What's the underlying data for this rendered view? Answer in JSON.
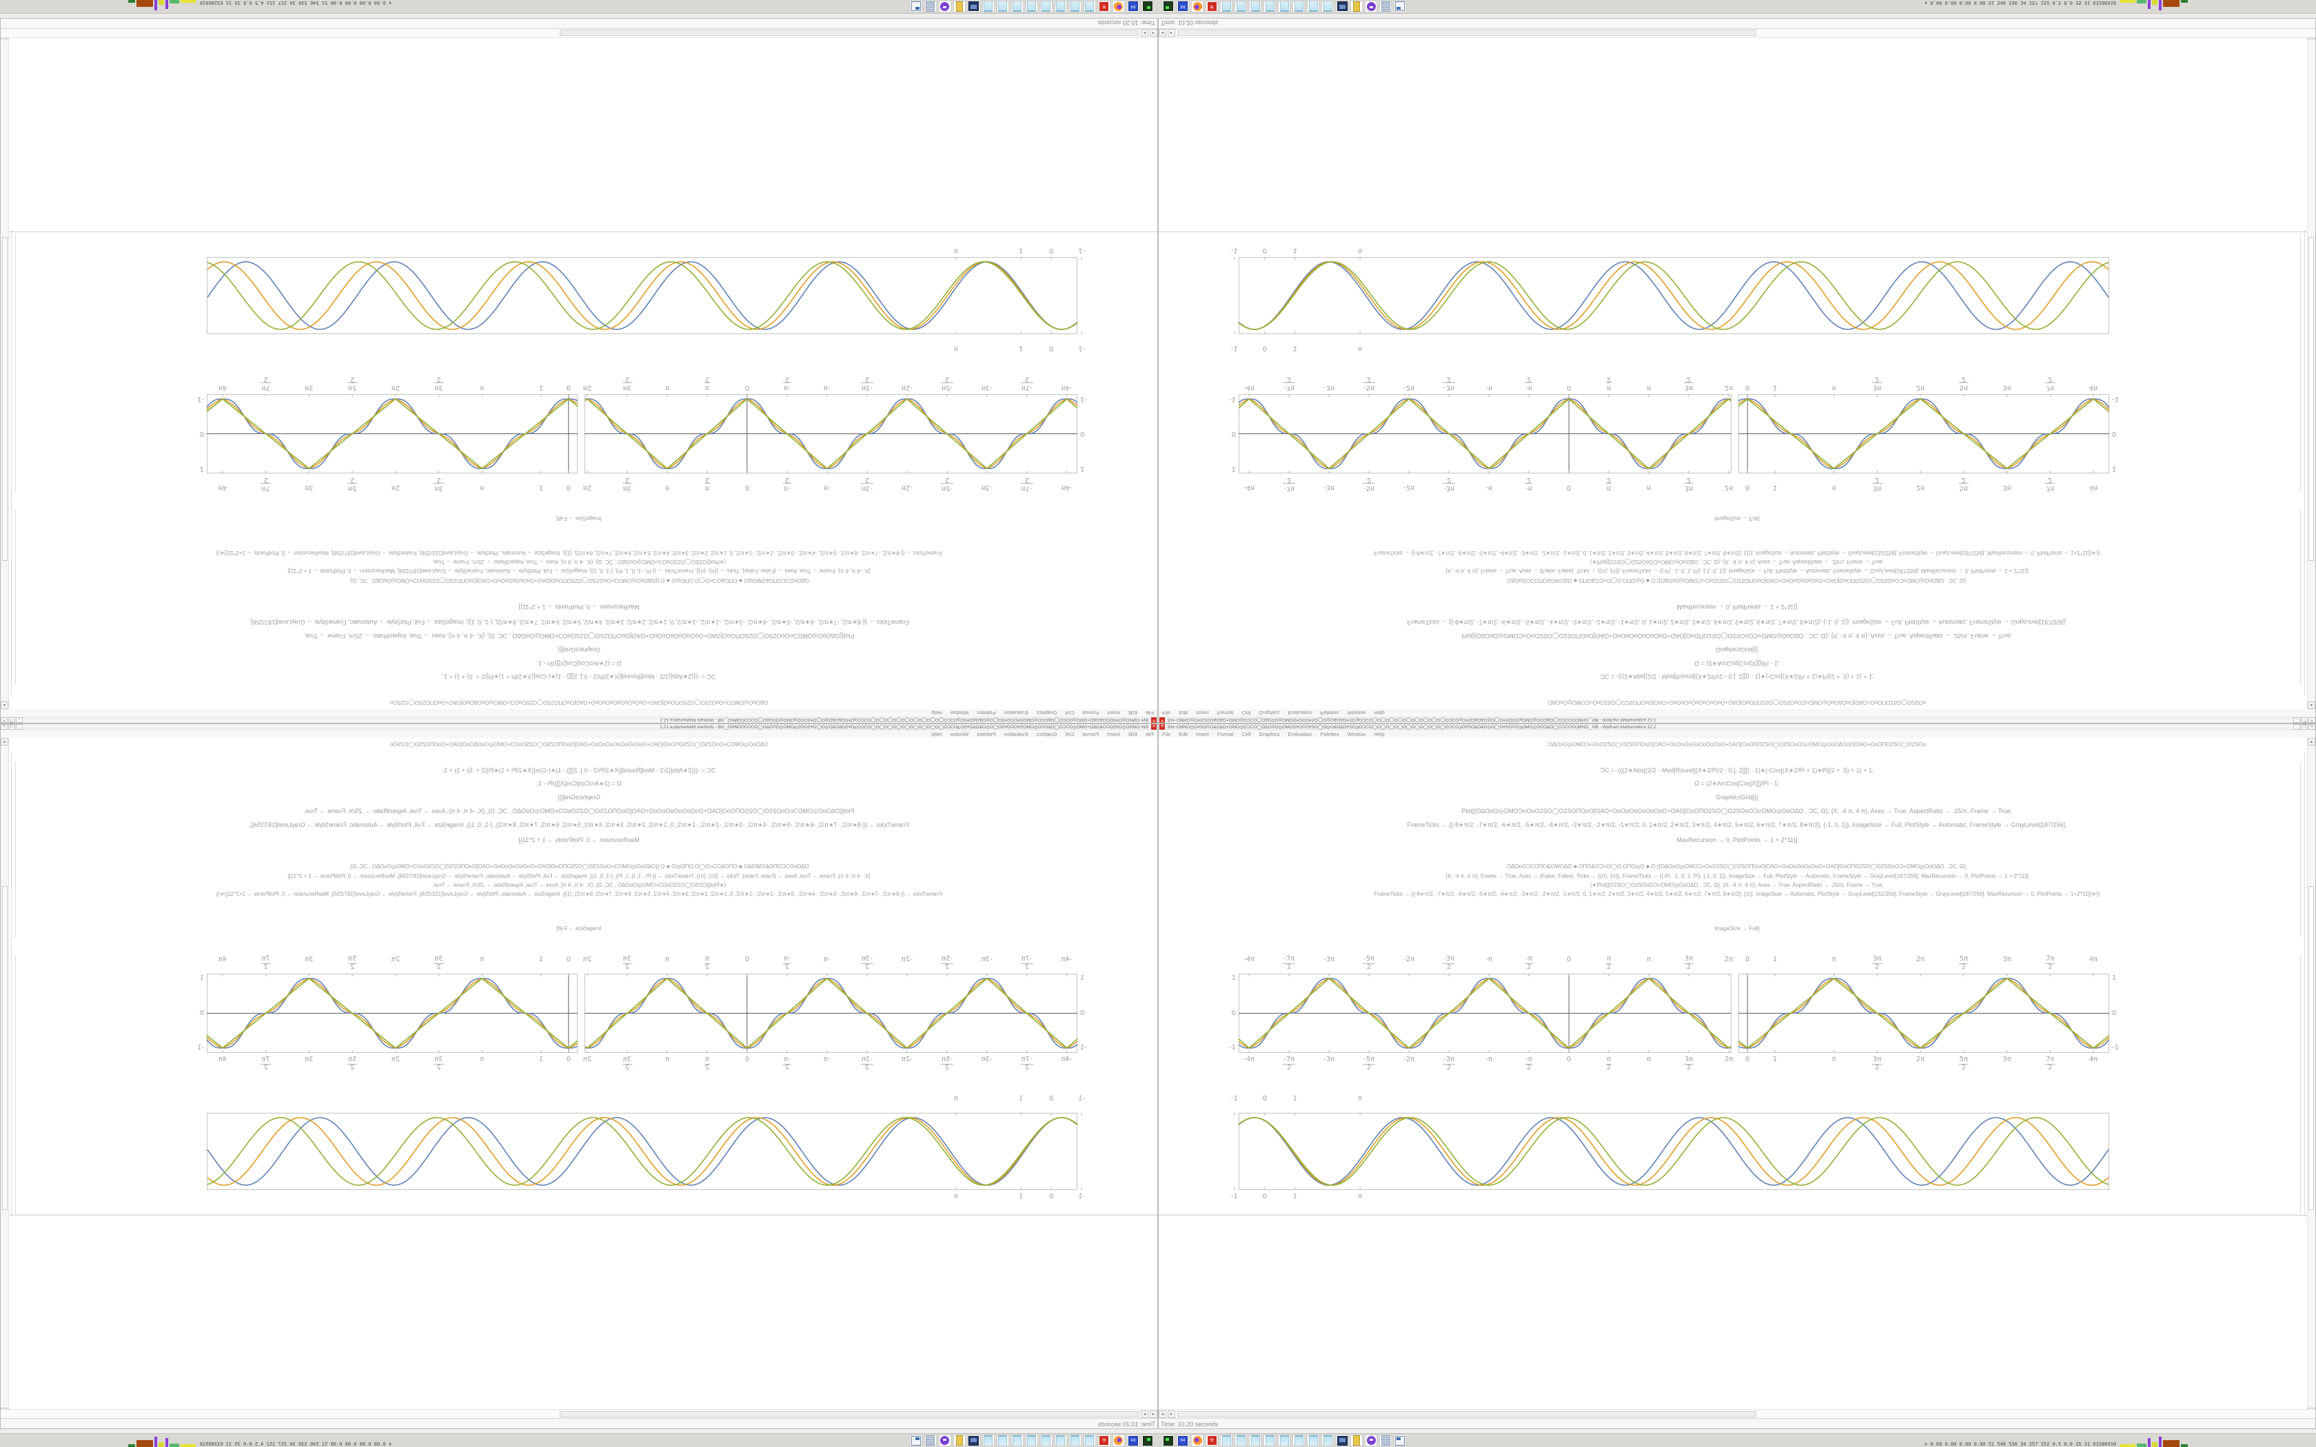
{
  "window": {
    "title": "ΒИ⌐ΟͶΝΟ◎Ο≡SΟ©Ο&ΟΔΟ+ΟΜΟ◎ΟϽϹΟ◯ΟΔΟ©Ο◎ΟΜΟS≡Ο©Ο≡SΟ◯Ο◎Ο&ΟΔΟ≡SΟ℈ΟϽϹΟ◯Ο◯Ο◯Ο◯Ο◯Ο◯Ο◯Ο◯Ο◯ΟϽϹΟ℈Ο≡SΟΔΟ&Ο◎Ο◯Ο≡SΟ©Ο℈ΟΜΟ◎Ο©ΟΔΟ◯ΟϽϹΟ©ΟͶΝΟ_.NB - Wolfram Mathematica 12.2",
    "app_icon": "✳",
    "controls": {
      "minimize": "_",
      "restore": "❐",
      "close": "✕"
    }
  },
  "menu": {
    "items": [
      "File",
      "Edit",
      "Insert",
      "Format",
      "Cell",
      "Graphics",
      "Evaluation",
      "Palettes",
      "Window",
      "Help"
    ]
  },
  "notebook": {
    "code_block0": "ΟΔΟοΟ◎ΟΜΟϽ℮ΟοΟ2SΟ◯Ο2SΟΠΟοΟ[ΟΑΟ+ΟοΟοΟοΟοΟοΟοΟοΟ+ΟΑΟ[ΟοΟΠΟ2SΟ◯Ο2SΟοΟϽ℮ΟΜΟ◎ΟοΟΔΟοΟ[ΟΑΟ+ΟοΟΠΟ2SΟ◯Ο2SΟο",
    "code_block1": [
      "ϽϹ = -(((2∗Abs[(2/2 - Mod[Round[(X∗2/Pi/2 - 0.], 2]]]) - 1)∗(-Cos[(X∗2/Pi + 1)∗Pi]/2 + .5) + 1) + 1;",
      "Ω = (2∗ArcCos[Cos[X]])/Pi - 1;",
      "GraphicsGrid[{{",
      "Plot[{ΟΔΟοΟ◎ΟΜΟϽ℮ΟοΟ2SΟ◯Ο2SΟΠΟοΟ[ΟΑΟ+ΟοΟοΟοΟοΟοΟοΟ+ΟΑΟ[ΟοΟΠΟ2SΟ◯Ο2SΟοΟϽ℮ΟΜΟ◎ΟοΟΔΟ , ϽϹ, Ω}, {X, -4 π, 4 π}, Axes → True, AspectRatio → .25/π, Frame → True,",
      "FrameTicks → {{-8∗π/2, -7∗π/2, -6∗π/2, -5∗π/2, -4∗π/2, -3∗π/2, -2∗π/2, -1∗π/2, 0, 1∗π/2, 2∗π/2, 3∗π/2, 4∗π/2, 5∗π/2, 6∗π/2, 7∗π/2, 8∗π/2}, {-1, 0, 1}}, ImageSize → Full, PlotStyle → Automatic, FrameStyle → GrayLevel[187/256],",
      "MaxRecursion → 0, PlotPoints → 1 + 2^11}]"
    ],
    "code_block2": [
      "ΟΔΟοΟϽϹΟΠΟ&ΟWΟΔΟ ♣ ΟΠΟ&ΟϽ℮Ο◯Ο,ΟΠΟ◎Ο ♣ Ο   [{ΟΔΟοΟ◎ΟΜΟϽ℮ΟοΟ2SΟ◯Ο2SΟΠΟοΟ[ΟΑΟ+ΟοΟοΟοΟοΟοΟ+ΟΑΟ[ΟοΟΠΟ2SΟ◯Ο2SΟοΟϽ℮ΟΜΟ◎ΟοΟΔΟ  , ϽϹ, Ω},",
      "{X, -4 π, 4 π}, Frame → True, Axes → {False, False}, Ticks → {{π}, {π}}, FrameTicks → {{-Pi, -1, 0, 1, Pi}, {-1, 0, 1}}, ImageSize → Full, PlotStyle → Automatic, FrameStyle → GrayLevel[187/256], MaxRecursion → 0, PlotPoints → 1 + 2^11]}",
      "(∗Plot[{Ο2SΟ◯Ο2SΟοΟϽ℮ΟΜΟ◎ΟοΟΔΟ  , ϽϹ, Ω}, {X, -4 π, 4 π}, Axes → True, AspectRatio → .25/π, Frame → True,",
      "FrameTicks → {{-8∗π/2, -7∗π/2, -6∗π/2, -5∗π/2, -4∗π/2, -3∗π/2, -2∗π/2, -1∗π/2, 0, 1∗π/2, 2∗π/2, 3∗π/2, 4∗π/2, 5∗π/2, 6∗π/2, 7∗π/2, 8∗π/2}, {1}}, ImageSize → Automatic, PlotStyle → GrayLevel[152/256], FrameStyle → GrayLevel[187/256], MaxRecursion → 0, PlotPoints → 1+2^11]}∗)}",
      "ImageSize → Full]"
    ]
  },
  "status": {
    "time_label": "Time: 10.20 seconds"
  },
  "tray": {
    "monitor_text": "⇈ 0.00 0.00 0.00 0.00  51  546  536  34  257  152  4.5  0.0  35  31  63286910",
    "spark": [
      {
        "color": "#e6e332",
        "w": 22,
        "h": 4
      },
      {
        "color": "#59b96b",
        "w": 14,
        "h": 5
      },
      {
        "color": "#8a3fd9",
        "w": 4,
        "h": 13
      },
      {
        "color": "#d9d932",
        "w": 8,
        "h": 7
      },
      {
        "color": "#8a3fd9",
        "w": 4,
        "h": 15
      },
      {
        "color": "#a6490f",
        "w": 24,
        "h": 10
      },
      {
        "color": "#2e7d32",
        "w": 10,
        "h": 4
      }
    ]
  },
  "taskbar": {
    "icons": [
      "drive-green",
      "floppy-64",
      "firefox",
      "gear-red",
      "notepad",
      "notepad",
      "notepad",
      "notepad",
      "notepad",
      "notepad",
      "notepad",
      "notepad",
      "monitor",
      "folder",
      "chat-purple",
      "scroll",
      "window"
    ],
    "floppy_label": "64"
  },
  "chart_data": [
    {
      "id": "row1-left",
      "type": "line",
      "title": "",
      "xlabel": "",
      "ylabel": "",
      "x_range": [
        -12.98,
        6.39
      ],
      "y_range": [
        -1.05,
        1.05
      ],
      "x_ticks": {
        "values": [
          -12.566,
          -10.996,
          -9.425,
          -7.854,
          -6.283,
          -4.712,
          -3.1416,
          -1.5708,
          0,
          1.5708,
          3.1416,
          4.712,
          6.283
        ],
        "labels": [
          "-4π",
          "-7π/2",
          "-3π",
          "-5π/2",
          "-2π",
          "-3π/2",
          "-π",
          "-π/2",
          "0",
          "π/2",
          "π",
          "3π/2",
          "2π"
        ]
      },
      "y_ticks": {
        "values": [
          1,
          0,
          -1
        ],
        "labels": [
          "1",
          "0",
          "-1"
        ],
        "side": "left"
      },
      "axes_origin": true,
      "frame": true,
      "series": [
        {
          "name": "smoothed-square-wave",
          "fn": "terrace",
          "k": 1.0,
          "color": "#5e81b5"
        },
        {
          "name": "intermediate-wave",
          "fn": "terrace",
          "k": 2.2,
          "color": "#e19c24"
        },
        {
          "name": "triangle-wave",
          "fn": "triangle",
          "color": "#8fb032"
        }
      ]
    },
    {
      "id": "row1-right",
      "type": "line",
      "title": "",
      "xlabel": "",
      "ylabel": "",
      "x_range": [
        -0.33,
        13.14
      ],
      "y_range": [
        -1.05,
        1.05
      ],
      "x_ticks": {
        "values": [
          0,
          1,
          3.1416,
          4.712,
          6.283,
          7.854,
          9.425,
          10.996,
          12.566
        ],
        "labels": [
          "0",
          "1",
          "π",
          "3π/2",
          "2π",
          "5π/2",
          "3π",
          "7π/2",
          "4π"
        ]
      },
      "y_ticks": {
        "values": [
          1,
          0,
          -1
        ],
        "labels": [
          "1",
          "0",
          "-1"
        ],
        "side": "right"
      },
      "axes_origin": true,
      "frame": true,
      "series": [
        {
          "name": "smoothed-square-wave",
          "fn": "terrace",
          "k": 1.0,
          "color": "#5e81b5"
        },
        {
          "name": "intermediate-wave",
          "fn": "terrace",
          "k": 2.2,
          "color": "#e19c24"
        },
        {
          "name": "triangle-wave",
          "fn": "triangle",
          "color": "#8fb032"
        }
      ]
    },
    {
      "id": "row2",
      "type": "line",
      "title": "",
      "xlabel": "",
      "ylabel": "",
      "x_range": [
        -0.86,
        27.84
      ],
      "y_range": [
        -1.05,
        1.05
      ],
      "x_ticks": {
        "values": [
          -1,
          0,
          1,
          3.1416
        ],
        "labels": [
          "-1",
          "0",
          "1",
          "π"
        ]
      },
      "y_ticks": {
        "values": [],
        "labels": [],
        "side": "left"
      },
      "axes_origin": false,
      "frame": true,
      "series": [
        {
          "name": "cos-fast",
          "fn": "cos_detuned",
          "x0": -0.34,
          "period": 4.89,
          "color": "#5e81b5"
        },
        {
          "name": "cos-medium",
          "fn": "cos_detuned",
          "x0": -0.34,
          "period": 5.02,
          "color": "#e19c24"
        },
        {
          "name": "cos-slow",
          "fn": "cos_detuned",
          "x0": -0.34,
          "period": 5.15,
          "color": "#8fb032"
        }
      ]
    }
  ],
  "colors": {
    "curve_blue": "#5e81b5",
    "curve_orange": "#e19c24",
    "curve_green": "#8fb032",
    "frame_gray": "#c3c3c3",
    "axis_gray": "#5f5f5f",
    "tick_text": "#9e9e9e"
  }
}
